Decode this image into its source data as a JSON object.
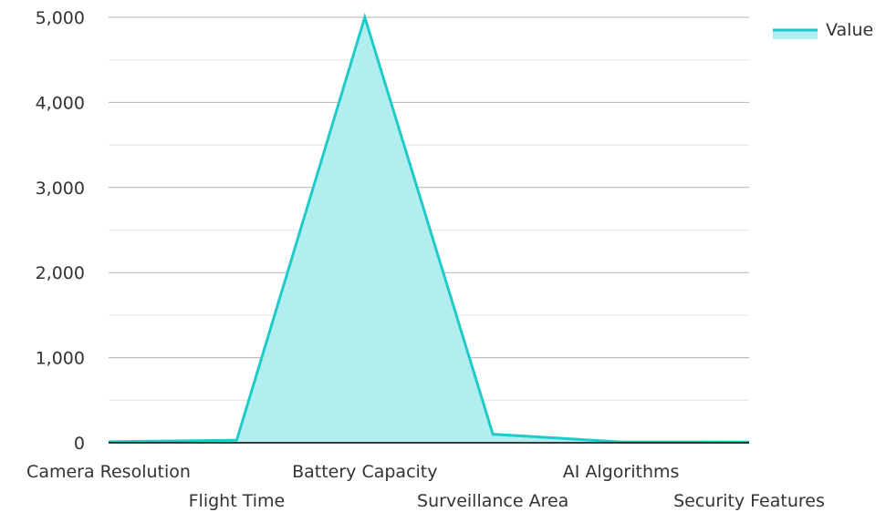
{
  "chart_data": {
    "type": "area",
    "categories": [
      "Camera Resolution",
      "Flight Time",
      "Battery Capacity",
      "Surveillance Area",
      "AI Algorithms",
      "Security Features"
    ],
    "series": [
      {
        "name": "Value",
        "values": [
          12,
          30,
          5000,
          100,
          10,
          8
        ]
      }
    ],
    "ylim": [
      0,
      5000
    ],
    "y_ticks": [
      "0",
      "1,000",
      "2,000",
      "3,000",
      "4,000",
      "5,000"
    ],
    "y_tick_values": [
      0,
      1000,
      2000,
      3000,
      4000,
      5000
    ],
    "grid": true,
    "legend_position": "top-right",
    "colors": {
      "line": "#1ecbc8",
      "fill": "#b3eeee",
      "grid_major": "#b3b3b3",
      "grid_minor": "#e3e3e3",
      "axis": "#000000",
      "text": "#333333"
    }
  }
}
